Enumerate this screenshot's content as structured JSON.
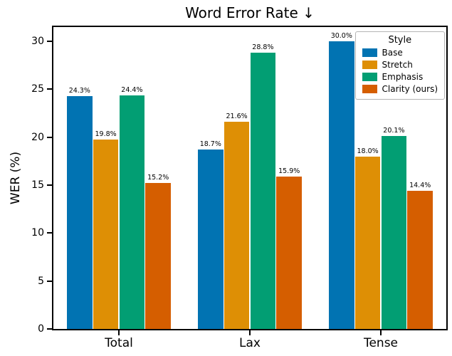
{
  "chart_data": {
    "type": "bar",
    "title": "Word Error Rate ↓",
    "ylabel": "WER (%)",
    "xlabel": "",
    "categories": [
      "Total",
      "Lax",
      "Tense"
    ],
    "series": [
      {
        "name": "Base",
        "color": "#0173b2",
        "values": [
          24.3,
          18.7,
          30.0
        ]
      },
      {
        "name": "Stretch",
        "color": "#de8f05",
        "values": [
          19.8,
          21.6,
          18.0
        ]
      },
      {
        "name": "Emphasis",
        "color": "#029e73",
        "values": [
          24.4,
          28.8,
          20.1
        ]
      },
      {
        "name": "Clarity (ours)",
        "color": "#d55e00",
        "values": [
          15.2,
          15.9,
          14.4
        ]
      }
    ],
    "bar_value_labels": [
      [
        "24.3%",
        "19.8%",
        "24.4%",
        "15.2%"
      ],
      [
        "18.7%",
        "21.6%",
        "28.8%",
        "15.9%"
      ],
      [
        "30.0%",
        "18.0%",
        "20.1%",
        "14.4%"
      ]
    ],
    "yticks": [
      0,
      5,
      10,
      15,
      20,
      25,
      30
    ],
    "ylim": [
      0,
      31.5
    ],
    "grid": false,
    "legend_title": "Style",
    "legend_position": "upper right",
    "spine_color": "#000000",
    "background_color": "#ffffff"
  }
}
